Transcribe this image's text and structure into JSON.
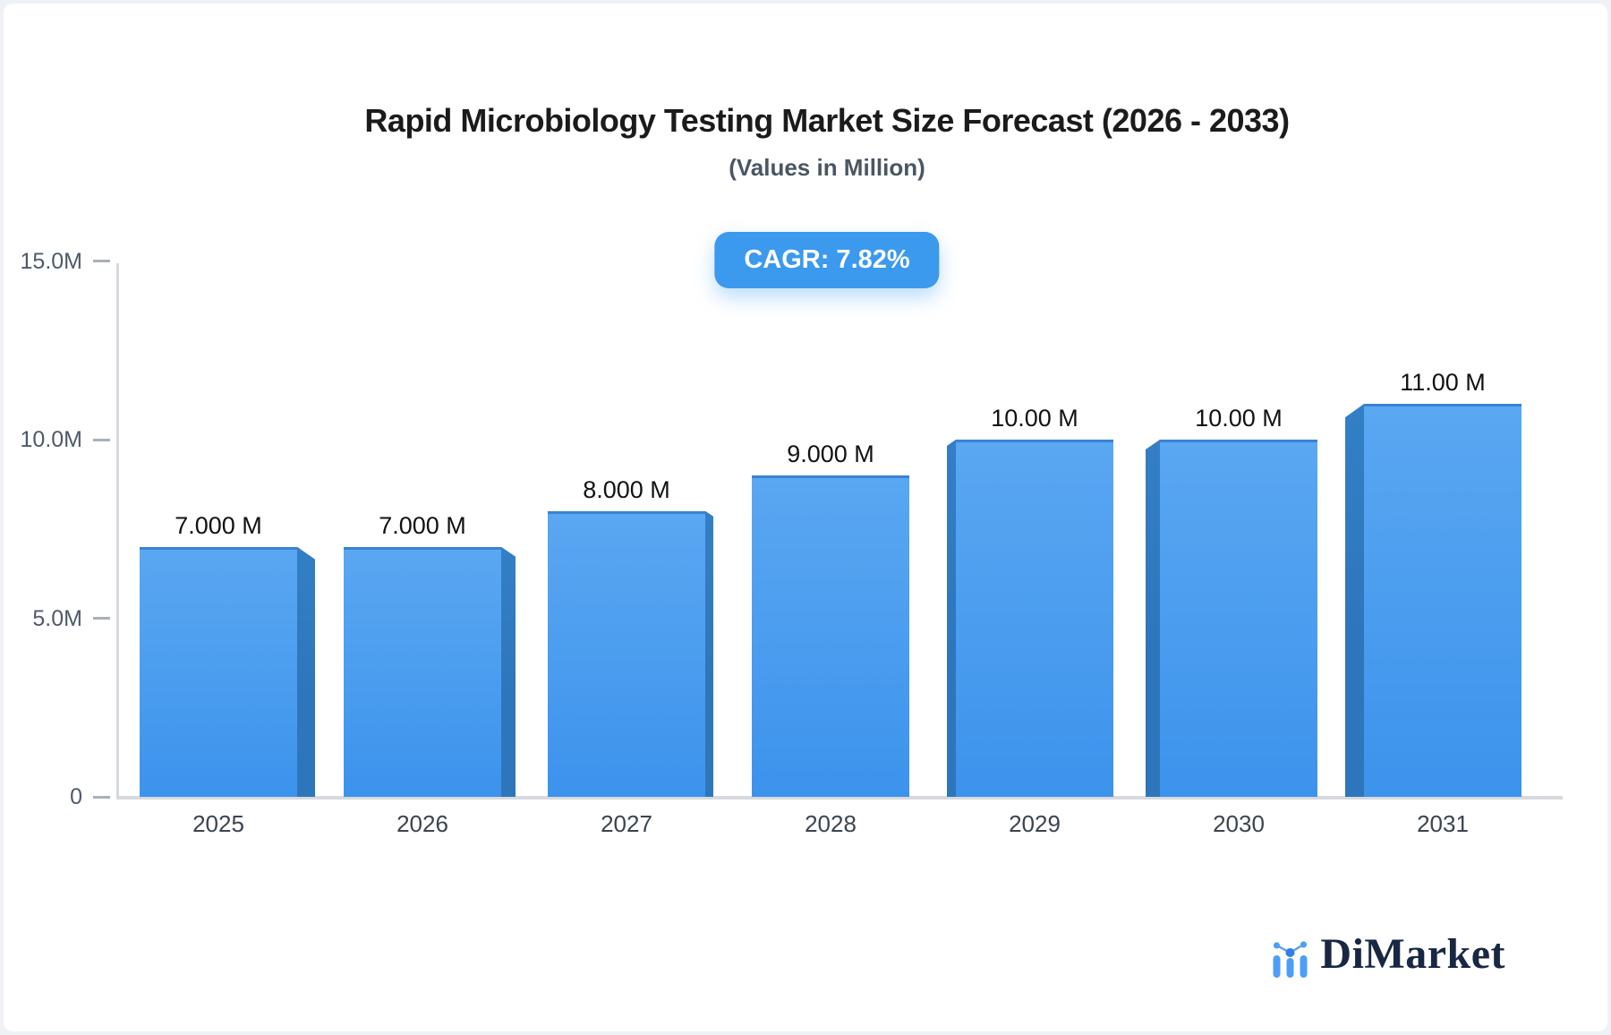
{
  "page": {
    "background": "#eef1f6",
    "card_background": "#ffffff"
  },
  "header": {
    "title": "Rapid Microbiology Testing Market Size Forecast (2026 - 2033)",
    "subtitle": "(Values in Million)",
    "cagr_badge": "CAGR: 7.82%"
  },
  "chart_data": {
    "type": "bar",
    "title": "Rapid Microbiology Testing Market Size Forecast (2026 - 2033)",
    "subtitle": "(Values in Million)",
    "unit": "Million",
    "cagr_percent": 7.82,
    "categories": [
      "2025",
      "2026",
      "2027",
      "2028",
      "2029",
      "2030",
      "2031"
    ],
    "values": [
      7,
      7,
      8,
      9,
      10,
      10,
      11
    ],
    "value_labels": [
      "7.000 M",
      "7.000 M",
      "8.000 M",
      "9.000 M",
      "10.00 M",
      "10.00 M",
      "11.00 M"
    ],
    "ylim": [
      0,
      15
    ],
    "yticks": [
      {
        "value": 0,
        "label": "0"
      },
      {
        "value": 5,
        "label": "5.0M"
      },
      {
        "value": 10,
        "label": "10.0M"
      },
      {
        "value": 15,
        "label": "15.0M"
      }
    ],
    "grid": false,
    "legend": null,
    "bar_style": "3d-extruded, perspective toward center (left bars show right face, right bars show left face)"
  },
  "branding": {
    "logo_text": "DiMarket",
    "logo_icon": "bar-chart-logo-icon",
    "icon_color": "#4D9FF6",
    "icon_dot_color": "#2F7FE8",
    "text_color": "#182743"
  },
  "colors": {
    "badge_bg": "#3B99EE",
    "badge_text": "#FFFFFF",
    "bar_face_top": "#5AA7F2",
    "bar_face_bottom": "#3C93EC",
    "bar_top_edge": "#3B82D4",
    "bar_side": "#2E76BB",
    "axis_line": "#D6D9DE",
    "tick": "#A9B0BA",
    "tick_label": "#4D5A6B",
    "year_label": "#3A4450",
    "value_label": "#101214",
    "title": "#1B1B1B",
    "subtitle": "#4A5663"
  }
}
